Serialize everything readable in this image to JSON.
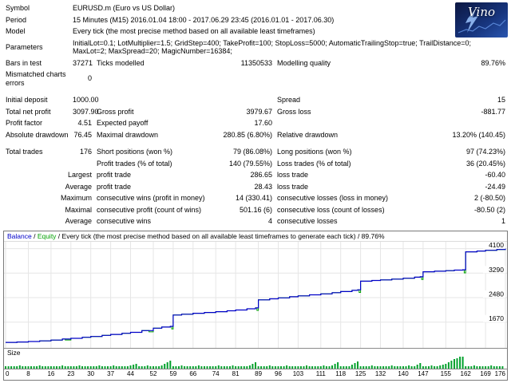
{
  "logo": {
    "text": "Vino"
  },
  "stats": {
    "rows": [
      {
        "l1": "Symbol",
        "v1": "EURUSD.m (Euro vs US Dollar)"
      },
      {
        "l1": "Period",
        "v1": "15 Minutes (M15) 2016.01.04 18:00 - 2017.06.29 23:45 (2016.01.01 - 2017.06.30)"
      },
      {
        "l1": "Model",
        "v1": "Every tick (the most precise method based on all available least timeframes)"
      },
      {
        "l1": "Parameters",
        "v1": "InitialLot=0.1; LotMultiplier=1.5; GridStep=400; TakeProfit=100; StopLoss=5000; AutomaticTrailingStop=true; TrailDistance=0; MaxLot=2; MaxSpread=20; MagicNumber=16384;"
      },
      {
        "l1": "Bars in test",
        "v1": "37271",
        "l2": "Ticks modelled",
        "v2": "11350533",
        "l3": "Modelling quality",
        "v3": "89.76%"
      },
      {
        "l1": "Mismatched charts errors",
        "v1": "0",
        "l2": "",
        "v2": "",
        "l3": "",
        "v3": ""
      },
      {
        "l1": "Initial deposit",
        "v1": "1000.00",
        "l2": "",
        "v2": "",
        "l3": "Spread",
        "v3": "15"
      },
      {
        "l1": "Total net profit",
        "v1": "3097.90",
        "l2": "Gross profit",
        "v2": "3979.67",
        "l3": "Gross loss",
        "v3": "-881.77"
      },
      {
        "l1": "Profit factor",
        "v1": "4.51",
        "l2": "Expected payoff",
        "v2": "17.60",
        "l3": "",
        "v3": ""
      },
      {
        "l1": "Absolute drawdown",
        "v1": "76.45",
        "l2": "Maximal drawdown",
        "v2": "280.85 (6.80%)",
        "l3": "Relative drawdown",
        "v3": "13.20% (140.45)"
      },
      {
        "l1": "Total trades",
        "v1": "176",
        "l2": "Short positions (won %)",
        "v2": "79 (86.08%)",
        "l3": "Long positions (won %)",
        "v3": "97 (74.23%)"
      },
      {
        "l1": "",
        "v1": "",
        "l2": "Profit trades (% of total)",
        "v2": "140 (79.55%)",
        "l3": "Loss trades (% of total)",
        "v3": "36 (20.45%)"
      },
      {
        "l1": "Largest",
        "l2": "profit trade",
        "v2": "286.65",
        "l3": "loss trade",
        "v3": "-60.40"
      },
      {
        "l1": "Average",
        "l2": "profit trade",
        "v2": "28.43",
        "l3": "loss trade",
        "v3": "-24.49"
      },
      {
        "l1": "Maximum",
        "l2": "consecutive wins (profit in money)",
        "v2": "14 (330.41)",
        "l3": "consecutive losses (loss in money)",
        "v3": "2 (-80.50)"
      },
      {
        "l1": "Maximal",
        "l2": "consecutive profit (count of wins)",
        "v2": "501.16 (6)",
        "l3": "consecutive loss (count of losses)",
        "v3": "-80.50 (2)"
      },
      {
        "l1": "Average",
        "l2": "consecutive wins",
        "v2": "4",
        "l3": "consecutive losses",
        "v3": "1"
      }
    ]
  },
  "chart": {
    "legend": {
      "balance": "Balance",
      "equity": "Equity",
      "sep": " / ",
      "description": "Every tick (the most precise method based on all available least timeframes to generate each tick)",
      "quality": "89.76%"
    }
  },
  "chart_data": {
    "type": "line",
    "title": "Balance / Equity curve",
    "x_range": [
      0,
      176
    ],
    "y_range": [
      870,
      4275
    ],
    "y_ticks": [
      1670,
      2480,
      3290,
      4100
    ],
    "x_ticks": [
      0,
      8,
      16,
      23,
      30,
      37,
      44,
      52,
      59,
      66,
      74,
      81,
      89,
      96,
      103,
      111,
      118,
      125,
      132,
      140,
      147,
      155,
      162,
      169,
      176
    ],
    "grid": true,
    "series": [
      {
        "name": "Balance",
        "color": "#0000c8",
        "points": [
          [
            0,
            1000
          ],
          [
            4,
            1012
          ],
          [
            8,
            1028
          ],
          [
            12,
            1050
          ],
          [
            16,
            1075
          ],
          [
            20,
            1110
          ],
          [
            23,
            1135
          ],
          [
            27,
            1168
          ],
          [
            30,
            1195
          ],
          [
            34,
            1232
          ],
          [
            37,
            1262
          ],
          [
            41,
            1300
          ],
          [
            44,
            1332
          ],
          [
            48,
            1390
          ],
          [
            52,
            1470
          ],
          [
            55,
            1505
          ],
          [
            58,
            1530
          ],
          [
            59,
            1905
          ],
          [
            62,
            1930
          ],
          [
            66,
            1962
          ],
          [
            70,
            1990
          ],
          [
            74,
            2015
          ],
          [
            78,
            2045
          ],
          [
            81,
            2072
          ],
          [
            85,
            2110
          ],
          [
            88,
            2140
          ],
          [
            89,
            2405
          ],
          [
            93,
            2440
          ],
          [
            96,
            2472
          ],
          [
            100,
            2508
          ],
          [
            103,
            2538
          ],
          [
            107,
            2572
          ],
          [
            111,
            2605
          ],
          [
            115,
            2645
          ],
          [
            118,
            2680
          ],
          [
            122,
            2720
          ],
          [
            124,
            2740
          ],
          [
            125,
            3025
          ],
          [
            129,
            3048
          ],
          [
            132,
            3065
          ],
          [
            136,
            3092
          ],
          [
            140,
            3122
          ],
          [
            144,
            3155
          ],
          [
            146,
            3170
          ],
          [
            147,
            3335
          ],
          [
            151,
            3355
          ],
          [
            155,
            3372
          ],
          [
            158,
            3390
          ],
          [
            161,
            3402
          ],
          [
            162,
            3995
          ],
          [
            166,
            4022
          ],
          [
            169,
            4045
          ],
          [
            173,
            4072
          ],
          [
            176,
            4098
          ]
        ]
      },
      {
        "name": "Equity",
        "color": "#00a000"
      }
    ],
    "equity_dips": [
      [
        21,
        1078
      ],
      [
        50.5,
        1348
      ],
      [
        58.5,
        1445
      ],
      [
        88.5,
        2058
      ],
      [
        124.5,
        2652
      ],
      [
        146.5,
        3082
      ],
      [
        161.5,
        3298
      ]
    ],
    "size_pane": {
      "label": "Size",
      "bar_color": "#00a12c",
      "bars": [
        3,
        3,
        3,
        3,
        3,
        4,
        3,
        3,
        3,
        3,
        3,
        3,
        4,
        3,
        3,
        3,
        3,
        3,
        3,
        3,
        4,
        3,
        3,
        3,
        3,
        3,
        4,
        3,
        3,
        3,
        3,
        3,
        3,
        4,
        3,
        3,
        3,
        3,
        4,
        3,
        3,
        3,
        3,
        3,
        4,
        5,
        6,
        3,
        3,
        3,
        4,
        3,
        3,
        3,
        3,
        4,
        6,
        8,
        10,
        3,
        3,
        3,
        4,
        3,
        3,
        3,
        3,
        3,
        4,
        3,
        3,
        3,
        3,
        3,
        3,
        4,
        3,
        3,
        3,
        3,
        4,
        3,
        3,
        3,
        3,
        3,
        4,
        6,
        8,
        3,
        3,
        3,
        3,
        4,
        3,
        3,
        3,
        3,
        3,
        4,
        3,
        3,
        3,
        3,
        3,
        3,
        4,
        3,
        3,
        3,
        3,
        3,
        4,
        3,
        3,
        4,
        6,
        8,
        3,
        3,
        3,
        3,
        5,
        7,
        9,
        3,
        3,
        3,
        3,
        4,
        3,
        3,
        3,
        3,
        3,
        3,
        4,
        3,
        3,
        3,
        3,
        3,
        4,
        3,
        3,
        5,
        7,
        3,
        3,
        3,
        4,
        3,
        3,
        4,
        5,
        6,
        8,
        10,
        12,
        13,
        15,
        15,
        3,
        3,
        3,
        4,
        3,
        3,
        3,
        3,
        3,
        4,
        3,
        3,
        3,
        3
      ]
    }
  }
}
